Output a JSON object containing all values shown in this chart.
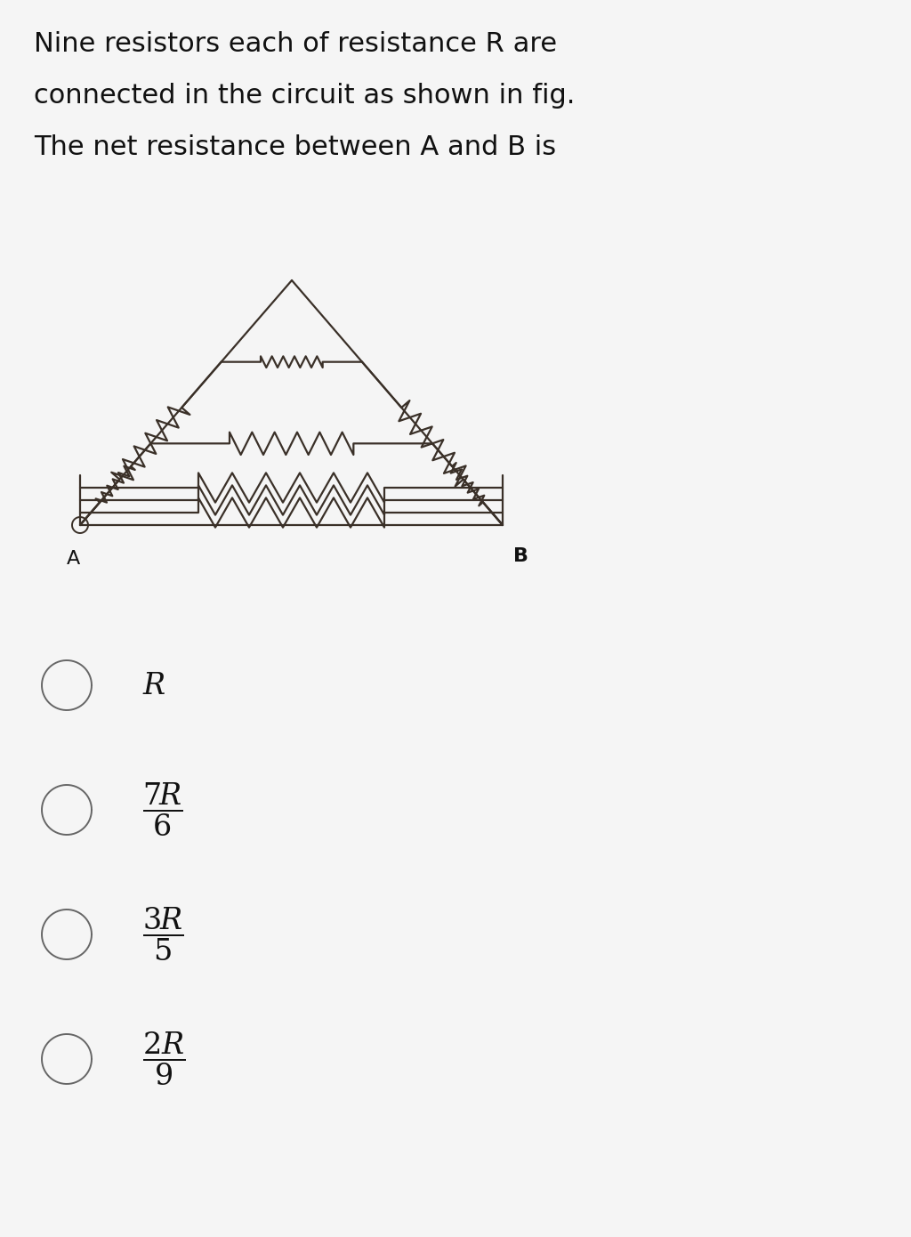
{
  "title_lines": [
    "Nine resistors each of resistance R are",
    "connected in the circuit as shown in fig.",
    "The net resistance between A and B is"
  ],
  "title_fontsize": 22,
  "bg_color": "#f5f5f5",
  "circuit_color": "#3a3028",
  "line_width": 1.6,
  "options": [
    {
      "is_fraction": false,
      "text": "$R$"
    },
    {
      "is_fraction": true,
      "text": "$\\dfrac{7R}{6}$"
    },
    {
      "is_fraction": true,
      "text": "$\\dfrac{3R}{5}$"
    },
    {
      "is_fraction": true,
      "text": "$\\dfrac{2R}{9}$"
    }
  ],
  "A_label": "A",
  "B_label": "B",
  "fig_width": 10.24,
  "fig_height": 13.9,
  "dpi": 100
}
